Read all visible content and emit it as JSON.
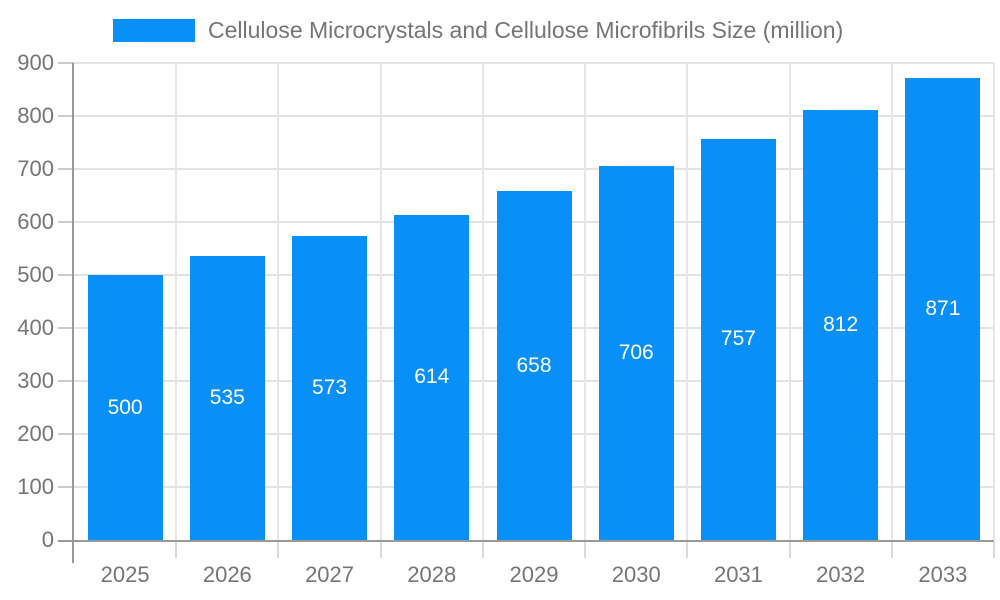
{
  "legend": {
    "label": "Cellulose Microcrystals and Cellulose Microfibrils Size (million)",
    "swatch_color": "#0890f8"
  },
  "colors": {
    "bar": "#0890f8",
    "grid": "#e3e3e3",
    "axis": "#999999",
    "axis_text": "#757575",
    "bar_label_text": "#ffffff"
  },
  "chart_data": {
    "type": "bar",
    "title": "Cellulose Microcrystals and Cellulose Microfibrils Size (million)",
    "categories": [
      "2025",
      "2026",
      "2027",
      "2028",
      "2029",
      "2030",
      "2031",
      "2032",
      "2033"
    ],
    "values": [
      500,
      535,
      573,
      614,
      658,
      706,
      757,
      812,
      871
    ],
    "xlabel": "",
    "ylabel": "",
    "ylim": [
      0,
      900
    ],
    "ytick_step": 100,
    "yticks": [
      0,
      100,
      200,
      300,
      400,
      500,
      600,
      700,
      800,
      900
    ],
    "grid": true,
    "legend_position": "top-left",
    "bar_value_labels": "inside-center"
  }
}
